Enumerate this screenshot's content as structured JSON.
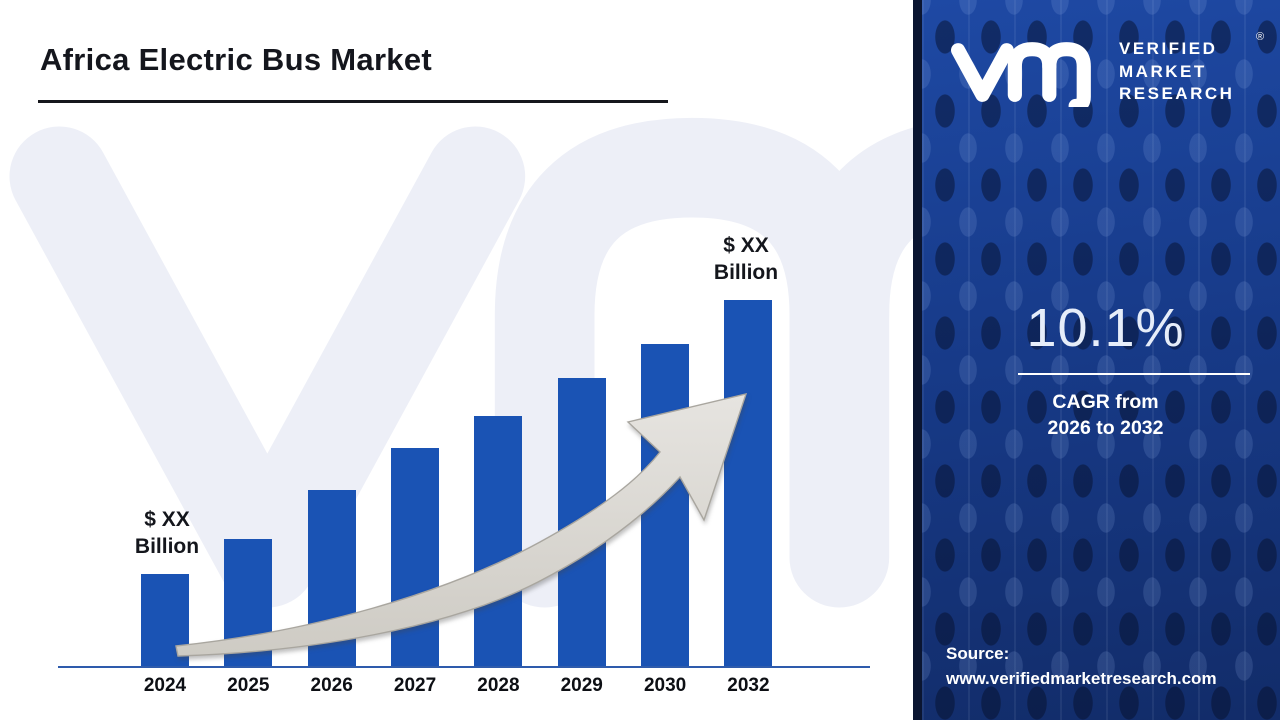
{
  "title": "Africa Electric Bus Market",
  "chart_data": {
    "type": "bar",
    "title": "Africa Electric Bus Market",
    "categories": [
      "2024",
      "2025",
      "2026",
      "2027",
      "2028",
      "2029",
      "2030",
      "2032"
    ],
    "values": [
      25.1,
      34.7,
      48.1,
      59.6,
      68.3,
      78.7,
      88.0,
      100.0
    ],
    "values_unit": "relative height, max bar = 100 (dollar values masked on chart)",
    "annotations": {
      "first_bar": {
        "line1": "$ XX",
        "line2": "Billion"
      },
      "last_bar": {
        "line1": "$ XX",
        "line2": "Billion"
      }
    },
    "xlabel": "",
    "ylabel": "",
    "legend": "none",
    "grid": "off"
  },
  "sidebar": {
    "brand": {
      "lines": {
        "0": "VERIFIED",
        "1": "MARKET",
        "2": "RESEARCH"
      },
      "registered": "®"
    },
    "cagr": {
      "value": "10.1%",
      "line1": "CAGR from",
      "line2": "2026 to 2032"
    },
    "source": {
      "label": "Source:",
      "url": "www.verifiedmarketresearch.com"
    }
  },
  "colors": {
    "bar": "#1a53b4",
    "axis": "#2e5bac",
    "title_text": "#14161d",
    "watermark": "#edeff7",
    "arrow_light": "#e3e1dd",
    "arrow_dark": "#cfccc5",
    "sidebar_blue": "#173a88",
    "sidebar_edge": "#0a1531",
    "sidebar_text": "#ffffff"
  }
}
